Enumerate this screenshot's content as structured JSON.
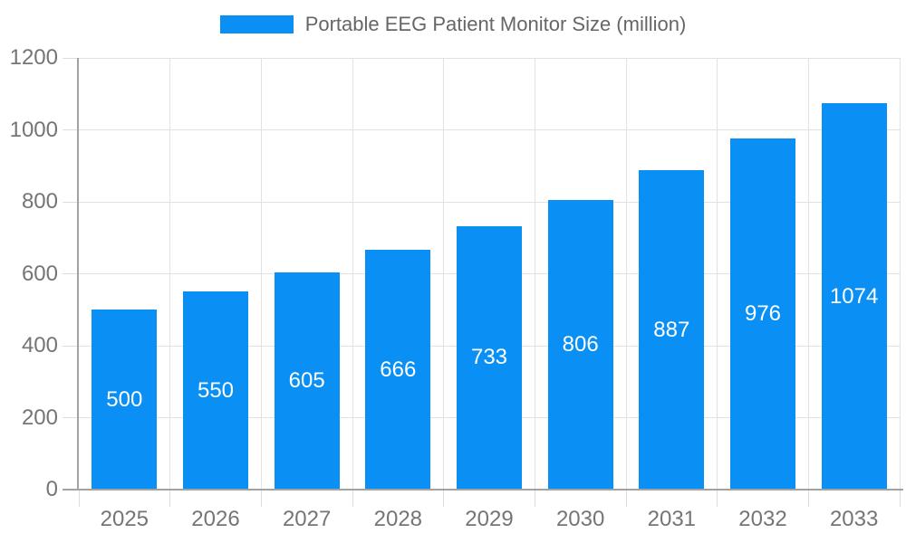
{
  "legend": {
    "series_label": "Portable EEG Patient Monitor Size (million)"
  },
  "chart_data": {
    "type": "bar",
    "title": "Portable EEG Patient Monitor Size (million)",
    "categories": [
      "2025",
      "2026",
      "2027",
      "2028",
      "2029",
      "2030",
      "2031",
      "2032",
      "2033"
    ],
    "values": [
      500,
      550,
      605,
      666,
      733,
      806,
      887,
      976,
      1074
    ],
    "series": [
      {
        "name": "Portable EEG Patient Monitor Size (million)",
        "values": [
          500,
          550,
          605,
          666,
          733,
          806,
          887,
          976,
          1074
        ]
      }
    ],
    "xlabel": "",
    "ylabel": "",
    "ylim": [
      0,
      1200
    ],
    "yticks": [
      0,
      200,
      400,
      600,
      800,
      1000,
      1200
    ],
    "grid": true,
    "legend_position": "top",
    "value_label_position": "inside-center"
  },
  "colors": {
    "bar": "#0a90f5",
    "grid": "#e2e2e2",
    "tick": "#dcdcdc",
    "axis": "#a2a2a2",
    "tick_label": "#757575",
    "legend_text": "#666666",
    "value_label": "#ffffff",
    "background": "#ffffff"
  }
}
